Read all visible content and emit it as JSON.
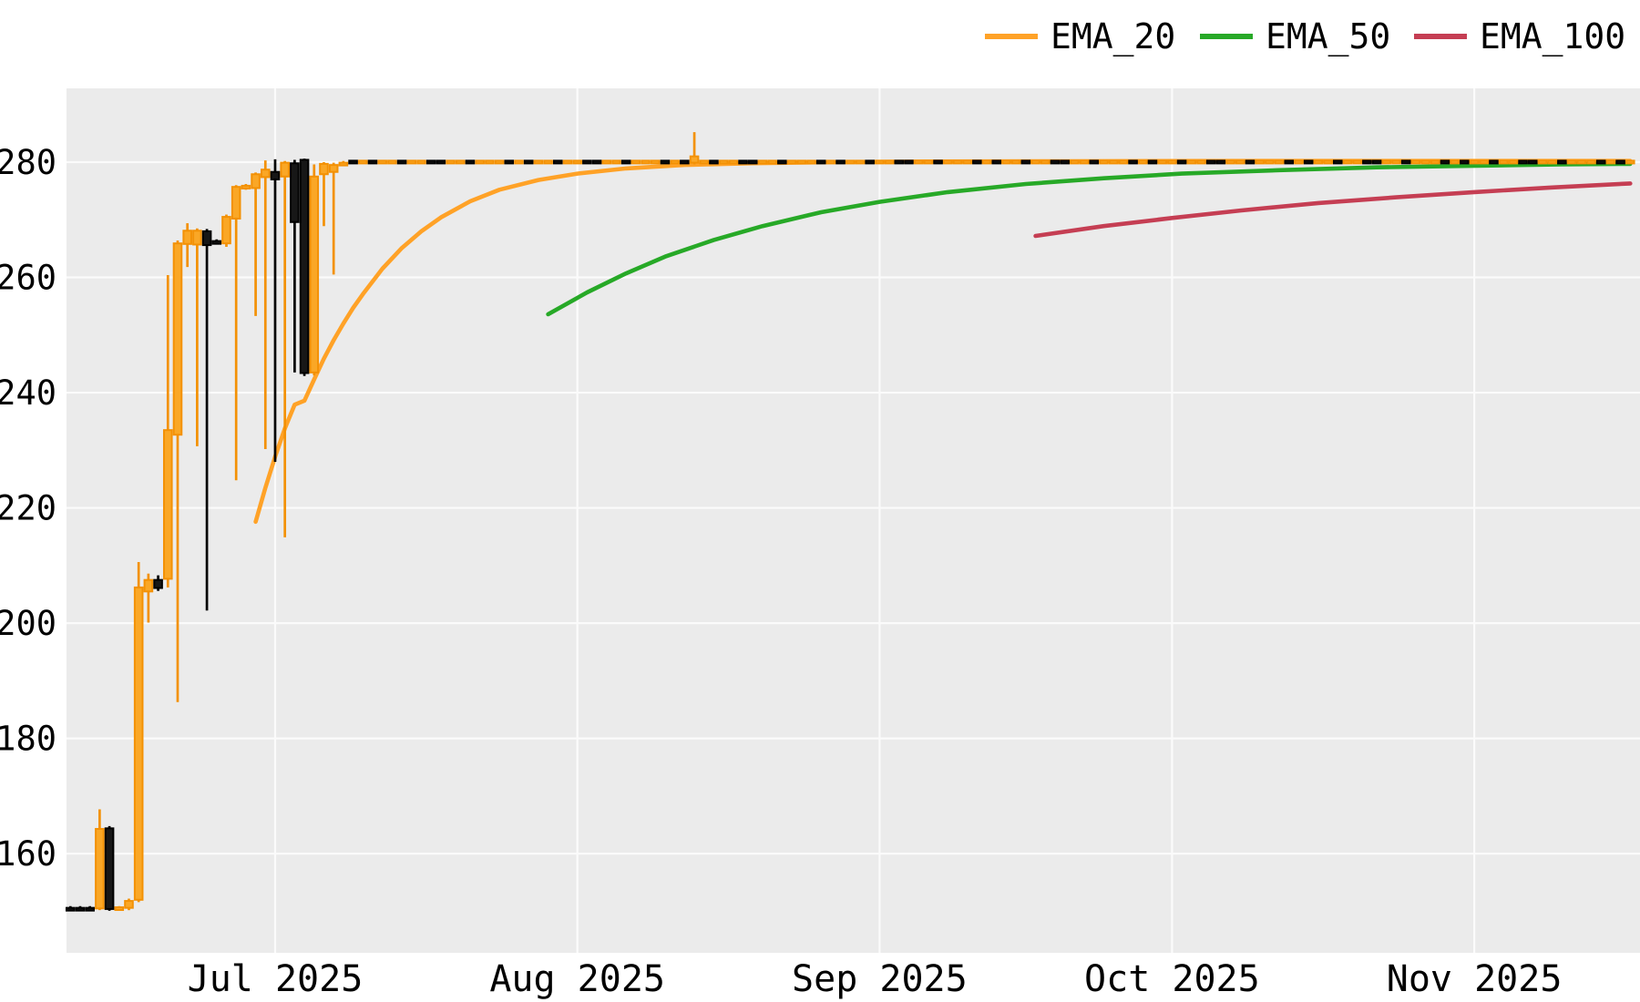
{
  "chart_data": {
    "type": "candlestick",
    "title": "",
    "grid": true,
    "legend_position": "top-right",
    "x_axis": {
      "range": {
        "start": "2025-06-10",
        "end": "2025-11-18"
      },
      "ticks": [
        {
          "label": "Jul 2025",
          "date": "2025-07-01"
        },
        {
          "label": "Aug 2025",
          "date": "2025-08-01"
        },
        {
          "label": "Sep 2025",
          "date": "2025-09-01"
        },
        {
          "label": "Oct 2025",
          "date": "2025-10-01"
        },
        {
          "label": "Nov 2025",
          "date": "2025-11-01"
        }
      ]
    },
    "y_axis": {
      "ticks": [
        280,
        260,
        240,
        220,
        200,
        180,
        160
      ],
      "range": [
        142.8,
        292.8
      ]
    },
    "style": {
      "plot_bg": "#ebebeb",
      "grid_color": "#fbfbfb",
      "text_color": "#000000",
      "up_fill": "#faa726",
      "up_stroke": "#f39105",
      "down_fill": "#171717",
      "down_stroke": "#000000"
    },
    "candles": [
      [
        "2025-06-10",
        150.6,
        150.9,
        150.2,
        150.4
      ],
      [
        "2025-06-11",
        150.6,
        150.9,
        150.2,
        150.4
      ],
      [
        "2025-06-12",
        150.6,
        150.9,
        150.2,
        150.4
      ],
      [
        "2025-06-13",
        150.5,
        167.7,
        150.2,
        164.3
      ],
      [
        "2025-06-14",
        164.4,
        164.8,
        150.1,
        150.4
      ],
      [
        "2025-06-15",
        150.4,
        150.9,
        150.1,
        150.7
      ],
      [
        "2025-06-16",
        150.6,
        152.2,
        150.2,
        151.8
      ],
      [
        "2025-06-17",
        152.0,
        210.6,
        151.6,
        206.2
      ],
      [
        "2025-06-18",
        205.5,
        208.6,
        200.1,
        207.5
      ],
      [
        "2025-06-19",
        207.5,
        208.3,
        205.6,
        206.1
      ],
      [
        "2025-06-20",
        207.7,
        260.4,
        206.2,
        233.5
      ],
      [
        "2025-06-21",
        232.7,
        266.4,
        186.3,
        265.9
      ],
      [
        "2025-06-22",
        265.8,
        269.4,
        261.8,
        268.1
      ],
      [
        "2025-06-23",
        265.7,
        268.5,
        230.7,
        268.1
      ],
      [
        "2025-06-24",
        268.0,
        268.4,
        202.2,
        265.6
      ],
      [
        "2025-06-25",
        266.3,
        266.6,
        265.7,
        266.0
      ],
      [
        "2025-06-26",
        265.9,
        270.9,
        265.3,
        270.5
      ],
      [
        "2025-06-27",
        270.2,
        276.0,
        224.8,
        275.7
      ],
      [
        "2025-06-28",
        275.6,
        276.2,
        275.2,
        275.9
      ],
      [
        "2025-06-29",
        275.5,
        278.2,
        253.3,
        277.9
      ],
      [
        "2025-06-30",
        277.4,
        280.3,
        230.2,
        278.7
      ],
      [
        "2025-07-01",
        278.3,
        280.5,
        228.0,
        277.0
      ],
      [
        "2025-07-02",
        277.5,
        280.2,
        214.9,
        279.9
      ],
      [
        "2025-07-03",
        279.8,
        280.4,
        243.5,
        269.6
      ],
      [
        "2025-07-04",
        280.4,
        280.6,
        242.9,
        243.4
      ],
      [
        "2025-07-05",
        243.5,
        279.6,
        243.0,
        277.5
      ],
      [
        "2025-07-06",
        277.9,
        280.0,
        268.9,
        279.7
      ],
      [
        "2025-07-07",
        278.3,
        279.9,
        260.5,
        279.5
      ],
      [
        "2025-07-08",
        279.7,
        280.2,
        279.4,
        279.9
      ]
    ],
    "flat_segment": {
      "start": "2025-07-09",
      "end": "2025-11-17",
      "price": 280.0,
      "body_low": 279.85,
      "body_high": 280.25,
      "high": 280.35,
      "low": 279.75,
      "color_cycle": [
        "black",
        "orange",
        "black",
        "orange",
        "orange",
        "black",
        "orange",
        "orange",
        "black",
        "black",
        "orange",
        "orange",
        "black",
        "orange",
        "orange",
        "orange"
      ]
    },
    "spike_candles": [
      [
        "2025-08-13",
        279.9,
        285.2,
        279.6,
        281.0
      ]
    ],
    "series": [
      {
        "name": "EMA_20",
        "color": "#ffa227",
        "points": [
          [
            "2025-06-29",
            217.6
          ],
          [
            "2025-06-30",
            223.5
          ],
          [
            "2025-07-01",
            228.9
          ],
          [
            "2025-07-02",
            233.8
          ],
          [
            "2025-07-03",
            237.9
          ],
          [
            "2025-07-04",
            238.6
          ],
          [
            "2025-07-05",
            242.3
          ],
          [
            "2025-07-06",
            245.9
          ],
          [
            "2025-07-07",
            249.1
          ],
          [
            "2025-07-08",
            252.0
          ],
          [
            "2025-07-09",
            254.7
          ],
          [
            "2025-07-10",
            257.1
          ],
          [
            "2025-07-12",
            261.5
          ],
          [
            "2025-07-14",
            265.1
          ],
          [
            "2025-07-16",
            268.0
          ],
          [
            "2025-07-18",
            270.4
          ],
          [
            "2025-07-21",
            273.2
          ],
          [
            "2025-07-24",
            275.2
          ],
          [
            "2025-07-28",
            276.9
          ],
          [
            "2025-08-01",
            278.0
          ],
          [
            "2025-08-06",
            278.9
          ],
          [
            "2025-08-12",
            279.5
          ],
          [
            "2025-08-19",
            279.8
          ],
          [
            "2025-08-27",
            280.0
          ],
          [
            "2025-09-06",
            280.1
          ],
          [
            "2025-09-20",
            280.15
          ],
          [
            "2025-10-10",
            280.2
          ],
          [
            "2025-11-01",
            280.2
          ],
          [
            "2025-11-17",
            280.2
          ]
        ]
      },
      {
        "name": "EMA_50",
        "color": "#27a927",
        "points": [
          [
            "2025-07-29",
            253.6
          ],
          [
            "2025-08-02",
            257.4
          ],
          [
            "2025-08-06",
            260.7
          ],
          [
            "2025-08-10",
            263.6
          ],
          [
            "2025-08-15",
            266.5
          ],
          [
            "2025-08-20",
            268.9
          ],
          [
            "2025-08-26",
            271.3
          ],
          [
            "2025-09-01",
            273.1
          ],
          [
            "2025-09-08",
            274.8
          ],
          [
            "2025-09-16",
            276.2
          ],
          [
            "2025-09-24",
            277.2
          ],
          [
            "2025-10-02",
            278.0
          ],
          [
            "2025-10-12",
            278.6
          ],
          [
            "2025-10-22",
            279.1
          ],
          [
            "2025-11-02",
            279.4
          ],
          [
            "2025-11-10",
            279.6
          ],
          [
            "2025-11-17",
            279.7
          ]
        ]
      },
      {
        "name": "EMA_100",
        "color": "#c53e53",
        "points": [
          [
            "2025-09-17",
            267.2
          ],
          [
            "2025-09-24",
            268.9
          ],
          [
            "2025-10-01",
            270.3
          ],
          [
            "2025-10-08",
            271.6
          ],
          [
            "2025-10-16",
            272.9
          ],
          [
            "2025-10-24",
            273.9
          ],
          [
            "2025-11-01",
            274.8
          ],
          [
            "2025-11-09",
            275.6
          ],
          [
            "2025-11-17",
            276.3
          ]
        ]
      }
    ]
  }
}
